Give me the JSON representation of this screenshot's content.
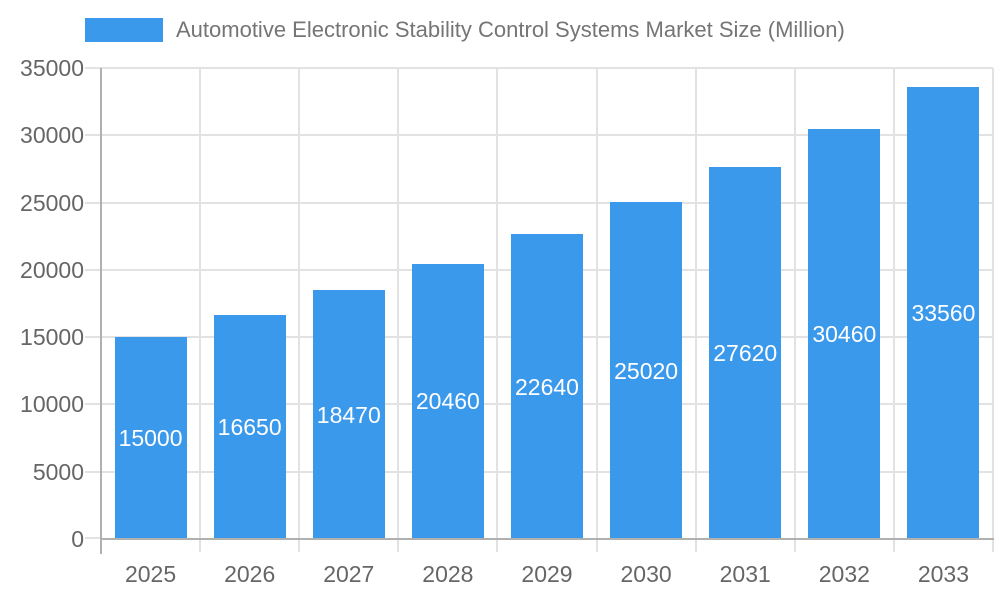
{
  "chart_data": {
    "type": "bar",
    "title": "Automotive Electronic Stability Control Systems Market Size (Million)",
    "series_name": "Automotive Electronic Stability Control Systems Market Size (Million)",
    "categories": [
      "2025",
      "2026",
      "2027",
      "2028",
      "2029",
      "2030",
      "2031",
      "2032",
      "2033"
    ],
    "values": [
      15000,
      16650,
      18470,
      20460,
      22640,
      25020,
      27620,
      30460,
      33560
    ],
    "xlabel": "",
    "ylabel": "",
    "ylim": [
      0,
      35000
    ],
    "y_ticks": [
      0,
      5000,
      10000,
      15000,
      20000,
      25000,
      30000,
      35000
    ],
    "grid": true,
    "legend_position": "top-left",
    "colors": {
      "bar": "#3b99ec",
      "bar_label": "#ffffff",
      "gridline": "#e2e2e2",
      "axis_line": "#b0b0b0",
      "axis_label": "#666666",
      "title_text": "#757575",
      "background": "#ffffff"
    }
  }
}
